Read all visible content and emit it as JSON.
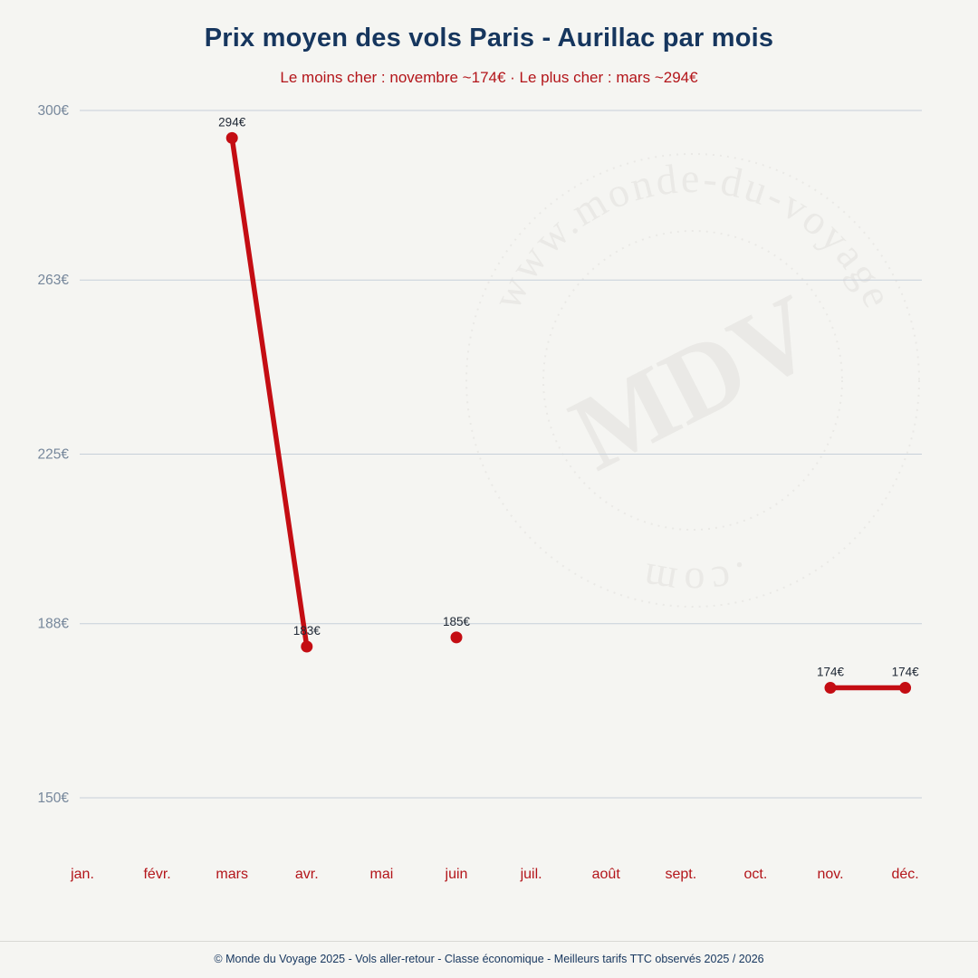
{
  "header": {
    "title": "Prix moyen des vols Paris - Aurillac par mois",
    "subtitle": "Le moins cher : novembre ~174€ · Le plus cher : mars ~294€"
  },
  "chart_data": {
    "type": "line",
    "title": "Prix moyen des vols Paris - Aurillac par mois",
    "categories": [
      "jan.",
      "févr.",
      "mars",
      "avr.",
      "mai",
      "juin",
      "juil.",
      "août",
      "sept.",
      "oct.",
      "nov.",
      "déc."
    ],
    "values": [
      null,
      null,
      294,
      183,
      null,
      185,
      null,
      null,
      null,
      null,
      174,
      174
    ],
    "point_labels": [
      "",
      "",
      "294€",
      "183€",
      "",
      "185€",
      "",
      "",
      "",
      "",
      "174€",
      "174€"
    ],
    "yticks": [
      300,
      263,
      225,
      188,
      150
    ],
    "ytick_labels": [
      "300€",
      "263€",
      "225€",
      "188€",
      "150€"
    ],
    "ylim": [
      150,
      300
    ],
    "grid": true,
    "legend_position": "none",
    "xlabel": "",
    "ylabel": ""
  },
  "watermark": {
    "arc_top": "www.monde-du-voyage",
    "arc_bottom": ".com",
    "center": "MDV"
  },
  "footer": {
    "text": "© Monde du Voyage 2025 - Vols aller-retour - Classe économique - Meilleurs tarifs TTC observés 2025 / 2026"
  },
  "colors": {
    "background": "#f5f5f2",
    "title": "#16365e",
    "subtitle": "#b3151a",
    "grid": "#c7d0d9",
    "axis_labels": "#76879b",
    "month_labels": "#b3151a",
    "line": "#c40d13",
    "point": "#c40d13",
    "point_label": "#1d2633",
    "footer_text": "#16365e",
    "watermark": "#e2e1dd"
  }
}
